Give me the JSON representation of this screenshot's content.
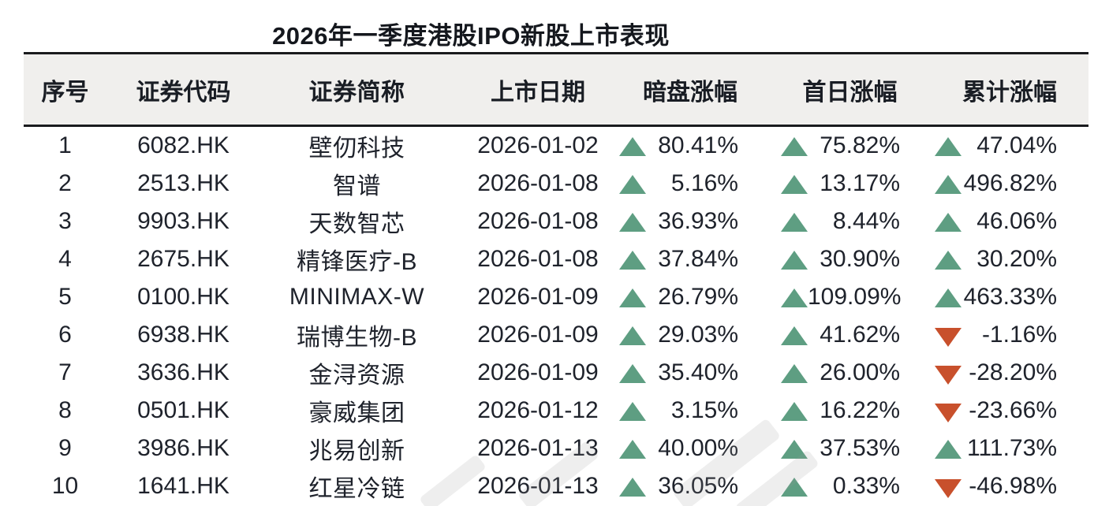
{
  "title": "2026年一季度港股IPO新股上市表现",
  "colors": {
    "up_triangle": "#5E9E82",
    "down_triangle": "#C8502C",
    "header_background": "#F0EFED",
    "rule_line": "#1A1B1E",
    "text": "#1E222B"
  },
  "icons": {
    "up_triangle": "▲",
    "down_triangle": "▼"
  },
  "table": {
    "headers": [
      "序号",
      "证券代码",
      "证券简称",
      "上市日期",
      "暗盘涨幅",
      "首日涨幅",
      "累计涨幅"
    ],
    "rows": [
      {
        "no": "1",
        "code": "6082.HK",
        "name": "壁仞科技",
        "date": "2026-01-02",
        "dark_pool": {
          "direction": "up",
          "value": "80.41%"
        },
        "first_day": {
          "direction": "up",
          "value": "75.82%"
        },
        "cumulative": {
          "direction": "up",
          "value": "47.04%"
        }
      },
      {
        "no": "2",
        "code": "2513.HK",
        "name": "智谱",
        "date": "2026-01-08",
        "dark_pool": {
          "direction": "up",
          "value": "5.16%"
        },
        "first_day": {
          "direction": "up",
          "value": "13.17%"
        },
        "cumulative": {
          "direction": "up",
          "value": "496.82%"
        }
      },
      {
        "no": "3",
        "code": "9903.HK",
        "name": "天数智芯",
        "date": "2026-01-08",
        "dark_pool": {
          "direction": "up",
          "value": "36.93%"
        },
        "first_day": {
          "direction": "up",
          "value": "8.44%"
        },
        "cumulative": {
          "direction": "up",
          "value": "46.06%"
        }
      },
      {
        "no": "4",
        "code": "2675.HK",
        "name": "精锋医疗-B",
        "date": "2026-01-08",
        "dark_pool": {
          "direction": "up",
          "value": "37.84%"
        },
        "first_day": {
          "direction": "up",
          "value": "30.90%"
        },
        "cumulative": {
          "direction": "up",
          "value": "30.20%"
        }
      },
      {
        "no": "5",
        "code": "0100.HK",
        "name": "MINIMAX-W",
        "date": "2026-01-09",
        "dark_pool": {
          "direction": "up",
          "value": "26.79%"
        },
        "first_day": {
          "direction": "up",
          "value": "109.09%"
        },
        "cumulative": {
          "direction": "up",
          "value": "463.33%"
        }
      },
      {
        "no": "6",
        "code": "6938.HK",
        "name": "瑞博生物-B",
        "date": "2026-01-09",
        "dark_pool": {
          "direction": "up",
          "value": "29.03%"
        },
        "first_day": {
          "direction": "up",
          "value": "41.62%"
        },
        "cumulative": {
          "direction": "down",
          "value": "-1.16%"
        }
      },
      {
        "no": "7",
        "code": "3636.HK",
        "name": "金浔资源",
        "date": "2026-01-09",
        "dark_pool": {
          "direction": "up",
          "value": "35.40%"
        },
        "first_day": {
          "direction": "up",
          "value": "26.00%"
        },
        "cumulative": {
          "direction": "down",
          "value": "-28.20%"
        }
      },
      {
        "no": "8",
        "code": "0501.HK",
        "name": "豪威集团",
        "date": "2026-01-12",
        "dark_pool": {
          "direction": "up",
          "value": "3.15%"
        },
        "first_day": {
          "direction": "up",
          "value": "16.22%"
        },
        "cumulative": {
          "direction": "down",
          "value": "-23.66%"
        }
      },
      {
        "no": "9",
        "code": "3986.HK",
        "name": "兆易创新",
        "date": "2026-01-13",
        "dark_pool": {
          "direction": "up",
          "value": "40.00%"
        },
        "first_day": {
          "direction": "up",
          "value": "37.53%"
        },
        "cumulative": {
          "direction": "up",
          "value": "111.73%"
        }
      },
      {
        "no": "10",
        "code": "1641.HK",
        "name": "红星冷链",
        "date": "2026-01-13",
        "dark_pool": {
          "direction": "up",
          "value": "36.05%"
        },
        "first_day": {
          "direction": "up",
          "value": "0.33%"
        },
        "cumulative": {
          "direction": "down",
          "value": "-46.98%"
        }
      }
    ]
  }
}
